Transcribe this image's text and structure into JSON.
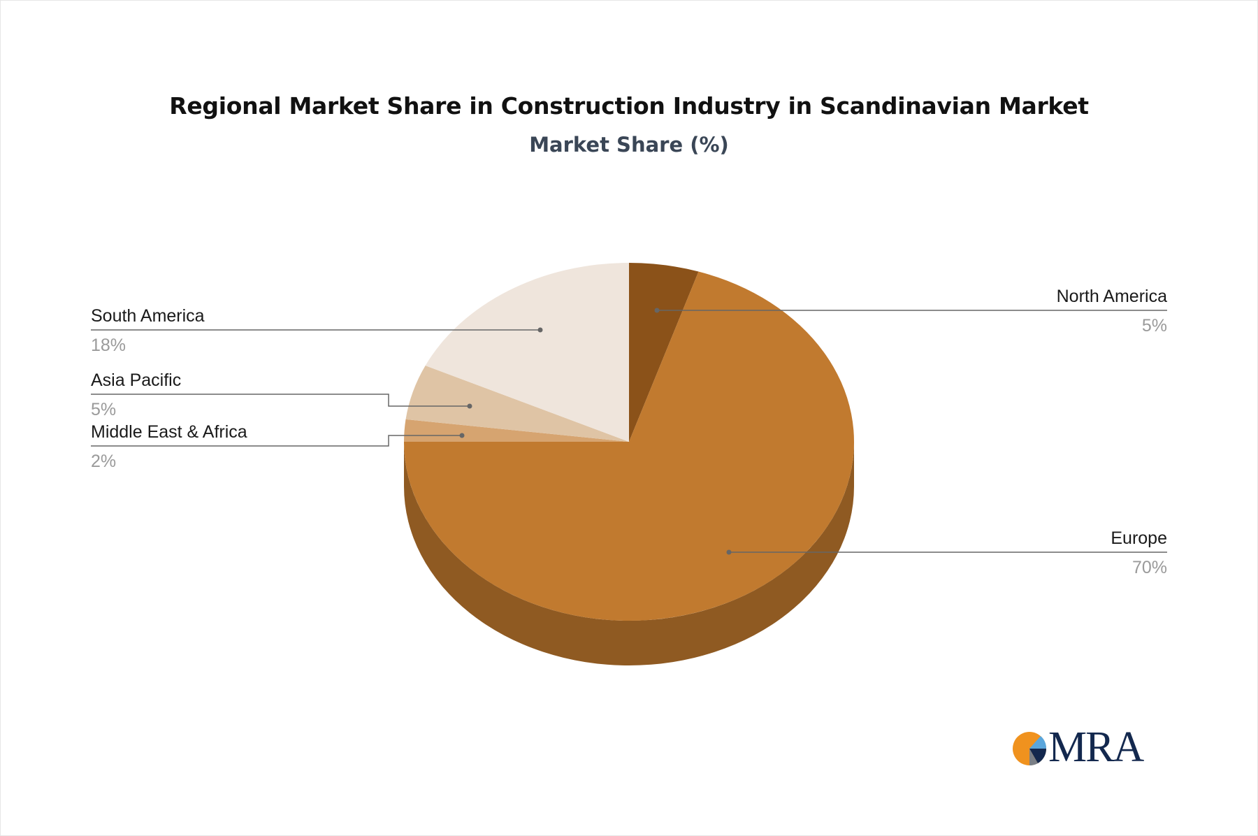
{
  "chart_data": {
    "type": "pie",
    "title": "Regional Market Share in Construction Industry in Scandinavian Market",
    "subtitle": "Market Share (%)",
    "slices": [
      {
        "label": "North America",
        "value": 5,
        "display": "5%",
        "color": "#8b5219"
      },
      {
        "label": "Europe",
        "value": 70,
        "display": "70%",
        "color": "#c17a2f"
      },
      {
        "label": "Middle East & Africa",
        "value": 2,
        "display": "2%",
        "color": "#d6a470"
      },
      {
        "label": "Asia Pacific",
        "value": 5,
        "display": "5%",
        "color": "#dfc4a5"
      },
      {
        "label": "South America",
        "value": 18,
        "display": "18%",
        "color": "#efe5dc"
      }
    ],
    "side_color": "#8f5a22",
    "leader_line_color": "#666666"
  },
  "logo": {
    "text": "MRA",
    "colors": {
      "orange": "#f0921e",
      "navy": "#13284e",
      "light_blue": "#5aa6dc",
      "gray": "#7a7f86"
    }
  }
}
